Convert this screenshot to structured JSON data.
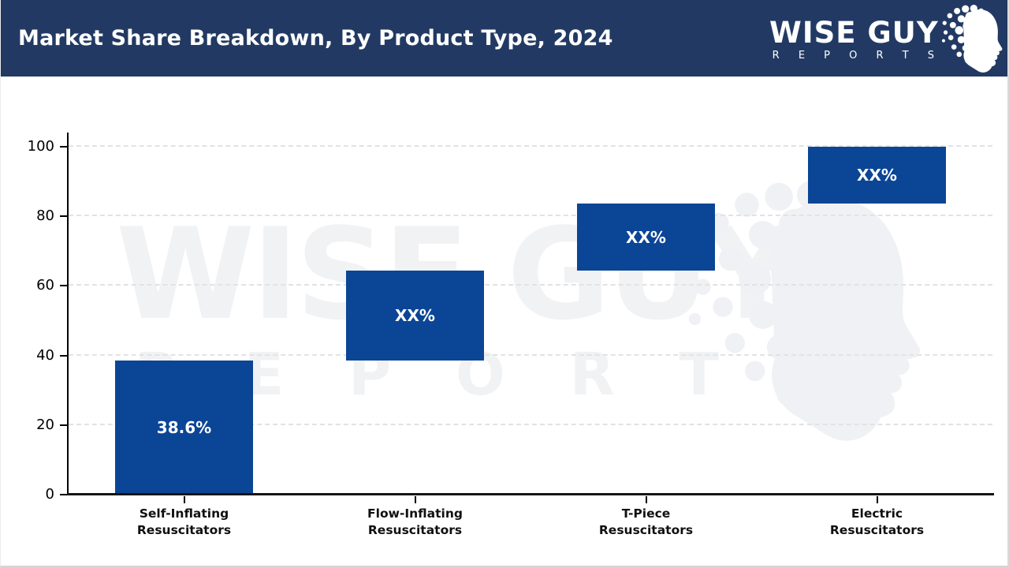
{
  "header": {
    "title": "Market Share Breakdown, By Product Type, 2024",
    "bg_color": "#223a63",
    "logo": {
      "line1": "WISE GUY",
      "line2": "R E P O R T S"
    }
  },
  "watermark": {
    "line1": "WISE GUY",
    "line2": "R E P O R T S"
  },
  "chart_data": {
    "type": "bar",
    "subtype": "stacked-waterfall",
    "title": "Market Share Breakdown, By Product Type, 2024",
    "xlabel": "",
    "ylabel": "",
    "ylim": [
      0,
      100
    ],
    "yticks": [
      0,
      20,
      40,
      60,
      80,
      100
    ],
    "grid": "horizontal-dashed",
    "legend": "none",
    "bar_color": "#0b4596",
    "label_color": "#ffffff",
    "categories": [
      {
        "line1": "Self-Inflating",
        "line2": "Resuscitators"
      },
      {
        "line1": "Flow-Inflating",
        "line2": "Resuscitators"
      },
      {
        "line1": "T-Piece",
        "line2": "Resuscitators"
      },
      {
        "line1": "Electric",
        "line2": "Resuscitators"
      }
    ],
    "segments": [
      {
        "label": "38.6%",
        "start": 0,
        "end": 38.6
      },
      {
        "label": "XX%",
        "start": 38.6,
        "end": 64.3
      },
      {
        "label": "XX%",
        "start": 64.3,
        "end": 83.6
      },
      {
        "label": "XX%",
        "start": 83.6,
        "end": 100
      }
    ]
  }
}
